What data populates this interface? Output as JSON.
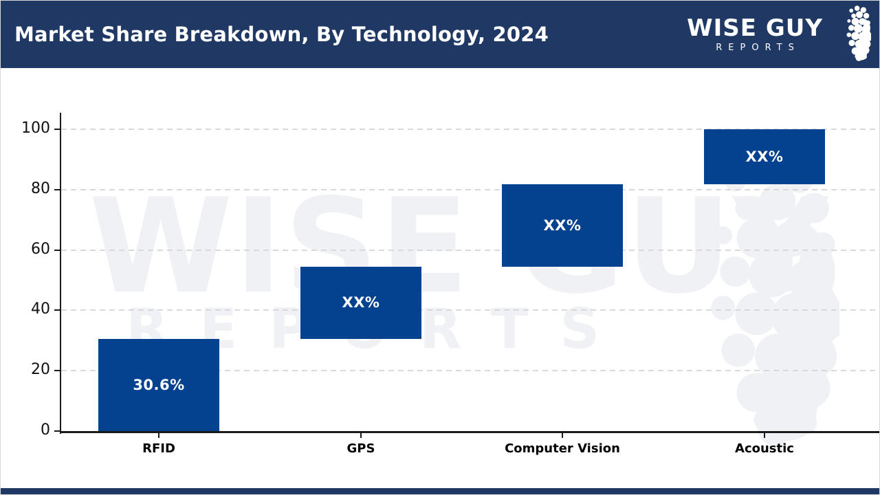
{
  "header": {
    "title": "Market Share Breakdown, By Technology, 2024",
    "logo": {
      "line1": "WISE GUY",
      "line2": "REPORTS"
    }
  },
  "watermark": {
    "line1": "WISE GUY",
    "line2": "REPORTS"
  },
  "chart_data": {
    "type": "bar",
    "subtype": "waterfall",
    "title": "Market Share Breakdown, By Technology, 2024",
    "categories": [
      "RFID",
      "GPS",
      "Computer Vision",
      "Acoustic"
    ],
    "segments": [
      {
        "category": "RFID",
        "start": 0,
        "end": 30.6,
        "label": "30.6%"
      },
      {
        "category": "GPS",
        "start": 30.6,
        "end": 54.5,
        "label": "XX%"
      },
      {
        "category": "Computer Vision",
        "start": 54.5,
        "end": 81.8,
        "label": "XX%"
      },
      {
        "category": "Acoustic",
        "start": 81.8,
        "end": 100,
        "label": "XX%"
      }
    ],
    "yticks": [
      0,
      20,
      40,
      60,
      80,
      100
    ],
    "ylim": [
      0,
      105
    ],
    "xlabel": "",
    "ylabel": "",
    "grid": "horizontal-dashed",
    "legend": "none",
    "bar_color": "#04418f",
    "bar_label_color": "#ffffff"
  },
  "colors": {
    "header_bg": "#203864",
    "footer_bg": "#203864",
    "grid": "#d9d9d9",
    "axis": "#1a1a1a",
    "watermark": "#f0f1f4"
  }
}
